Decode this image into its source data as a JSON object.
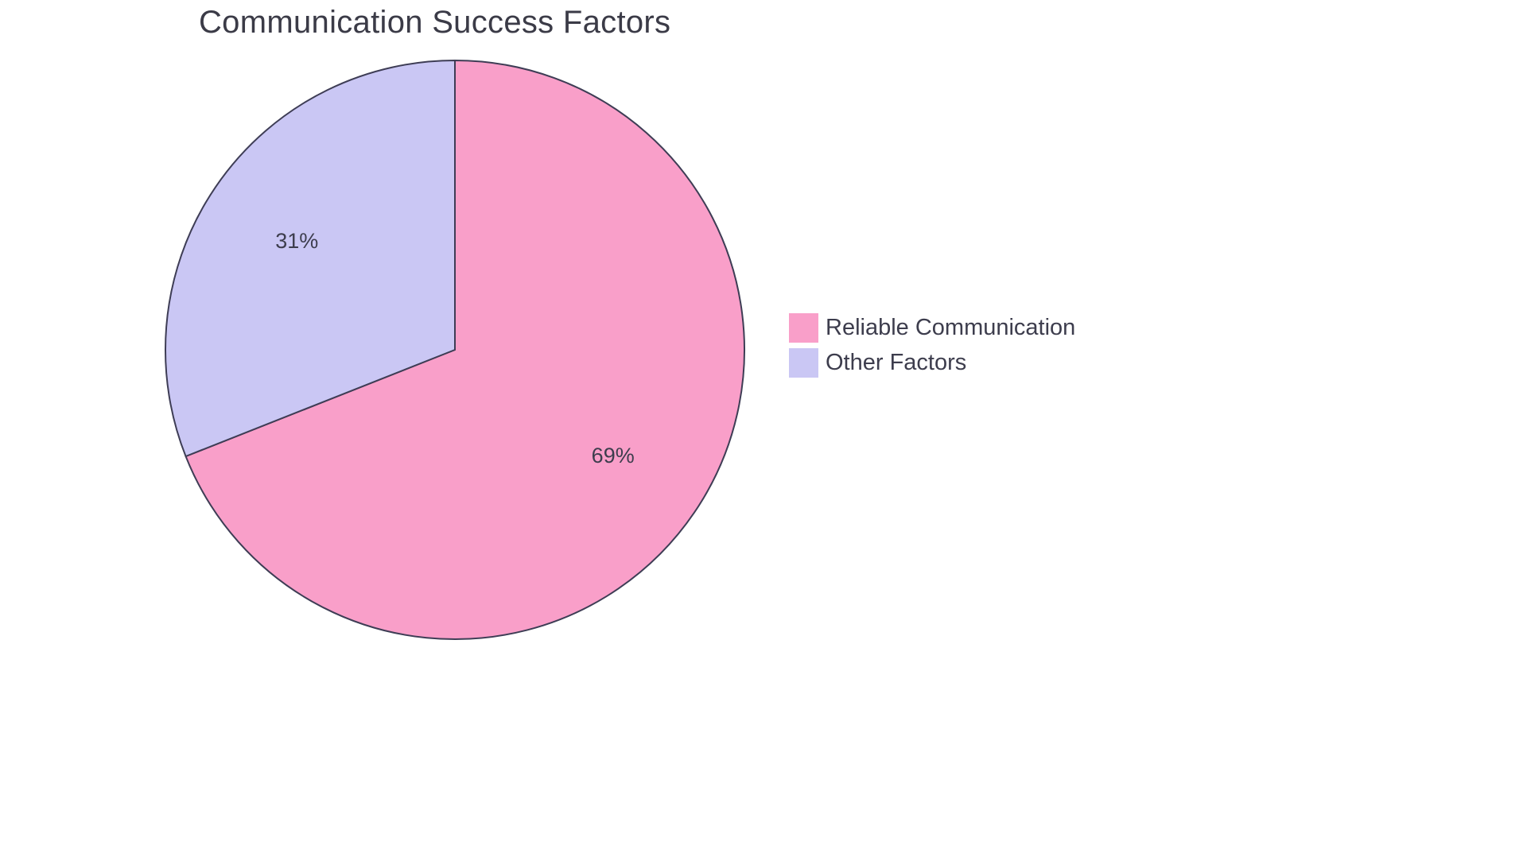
{
  "chart_data": {
    "type": "pie",
    "title": "Communication Success Factors",
    "slices": [
      {
        "label": "Reliable Communication",
        "value": 69,
        "percent_label": "69%",
        "color": "#F99FC9"
      },
      {
        "label": "Other Factors",
        "value": 31,
        "percent_label": "31%",
        "color": "#CAC7F4"
      }
    ],
    "start_angle": "top",
    "direction": "clockwise",
    "legend_position": "right",
    "legend_entries": [
      "Reliable Communication",
      "Other Factors"
    ],
    "stroke_color": "#3E3D55",
    "stroke_width": 2,
    "label_color": "#3D3D4D",
    "title_color": "#3B3B47",
    "background": "#FFFFFF"
  }
}
